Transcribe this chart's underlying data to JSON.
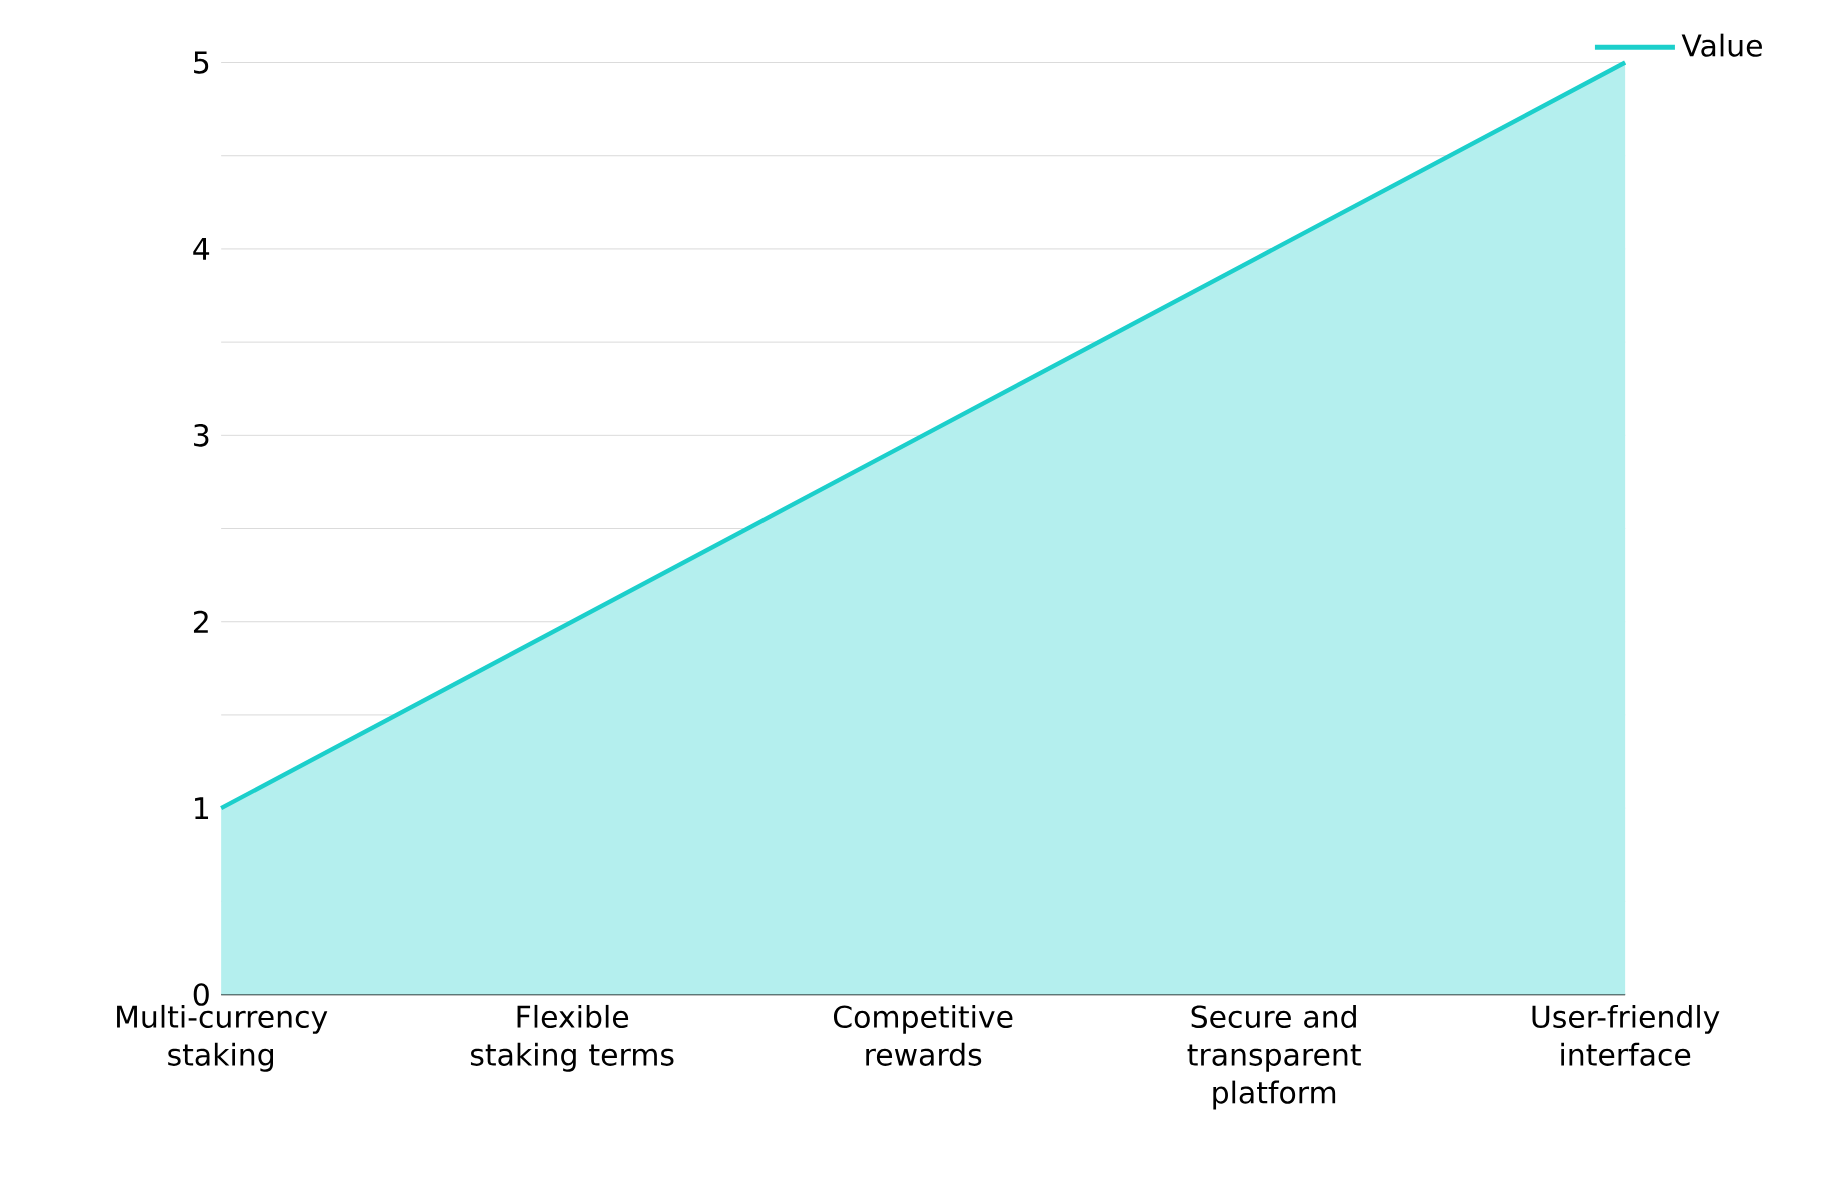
{
  "chart_data": {
    "type": "area",
    "categories": [
      "Multi-currency staking",
      "Flexible staking terms",
      "Competitive rewards",
      "Secure and transparent platform",
      "User-friendly interface"
    ],
    "series": [
      {
        "name": "Value",
        "color": "#1ccfcb",
        "values": [
          1,
          2,
          3,
          4,
          5
        ]
      }
    ],
    "ylim": [
      0,
      5
    ],
    "yticks": [
      0,
      {
        "value": 0.5,
        "label": null
      },
      1,
      {
        "value": 1.5,
        "label": null
      },
      2,
      {
        "value": 2.5,
        "label": null
      },
      3,
      {
        "value": 3.5,
        "label": null
      },
      4,
      {
        "value": 4.5,
        "label": null
      },
      5
    ],
    "grid": "y",
    "legend": "top right"
  }
}
